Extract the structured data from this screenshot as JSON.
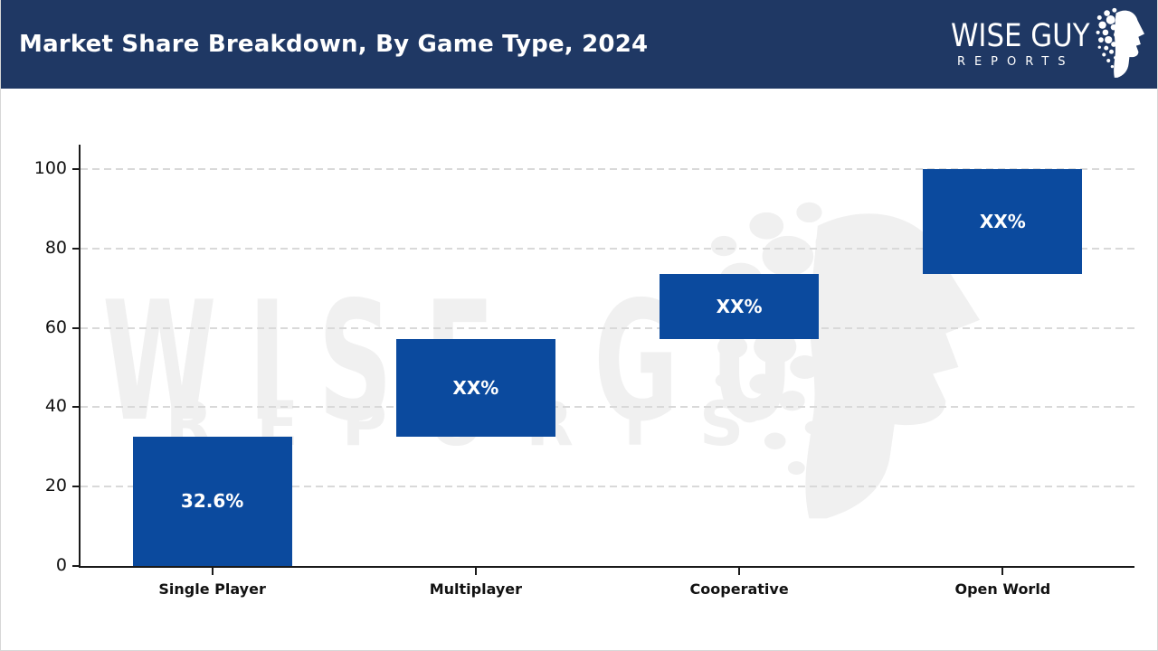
{
  "header": {
    "title": "Market Share Breakdown, By Game Type, 2024",
    "logo": {
      "name": "WISE GUY",
      "subtitle": "REPORTS"
    }
  },
  "watermark": {
    "line1": "WISE GU",
    "line2": "REPORTS"
  },
  "colors": {
    "header_bg": "#1f3864",
    "bar": "#0b4a9e",
    "grid": "#d9d9d9",
    "axis": "#1a1a1a",
    "watermark": "#f0f0f0",
    "title_text": "#ffffff",
    "bar_label": "#ffffff"
  },
  "chart_data": {
    "type": "bar",
    "subtype": "waterfall",
    "title": "Market Share Breakdown, By Game Type, 2024",
    "categories": [
      "Single Player",
      "Multiplayer",
      "Cooperative",
      "Open World"
    ],
    "segments": [
      {
        "start": 0,
        "end": 32.6
      },
      {
        "start": 32.6,
        "end": 57.2
      },
      {
        "start": 57.2,
        "end": 73.6
      },
      {
        "start": 73.6,
        "end": 100
      }
    ],
    "bar_labels": [
      "32.6%",
      "XX%",
      "XX%",
      "XX%"
    ],
    "yticks": [
      0,
      20,
      40,
      60,
      80,
      100
    ],
    "ylim": [
      0,
      100
    ],
    "xlabel": "",
    "ylabel": "",
    "grid": "horizontal-dashed",
    "legend": "none"
  }
}
